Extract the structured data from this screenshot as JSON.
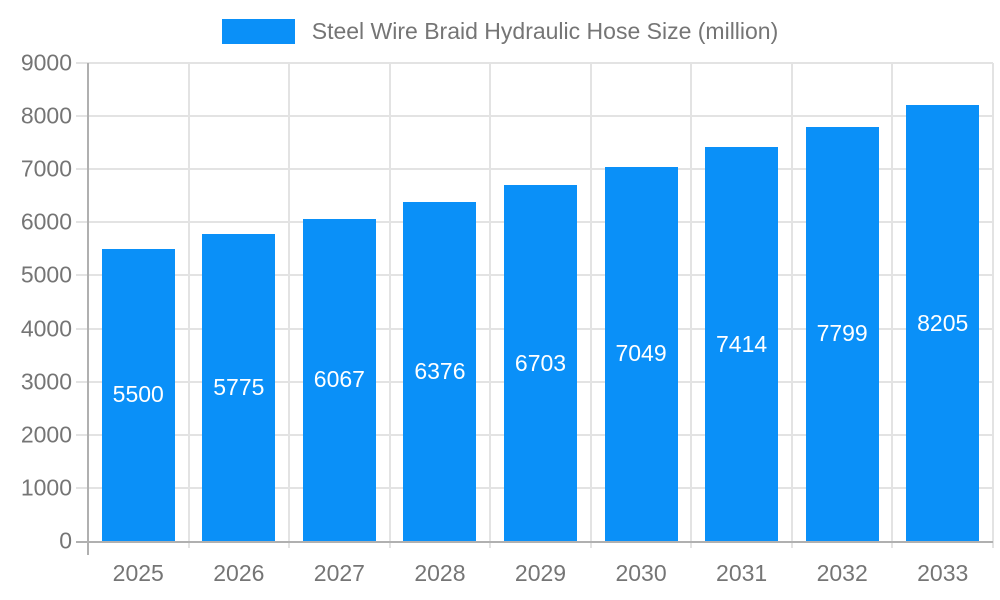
{
  "chart_data": {
    "type": "bar",
    "title": "Steel Wire Braid Hydraulic Hose Size (million)",
    "legend": {
      "position": "top",
      "label": "Steel Wire Braid Hydraulic Hose Size (million)"
    },
    "categories": [
      "2025",
      "2026",
      "2027",
      "2028",
      "2029",
      "2030",
      "2031",
      "2032",
      "2033"
    ],
    "series": [
      {
        "name": "Steel Wire Braid Hydraulic Hose Size (million)",
        "values": [
          5500,
          5775,
          6067,
          6376,
          6703,
          7049,
          7414,
          7799,
          8205
        ]
      }
    ],
    "xlabel": "",
    "ylabel": "",
    "ylim": [
      0,
      9000
    ],
    "y_ticks": [
      0,
      1000,
      2000,
      3000,
      4000,
      5000,
      6000,
      7000,
      8000,
      9000
    ],
    "grid": true,
    "bar_labels_inside": true,
    "colors": {
      "bar": "#0a90f8",
      "bar_label_text": "#ffffff",
      "axis_text": "#757575",
      "gridline": "#e3e3e3",
      "axis_line": "#b0b0b0",
      "background": "#ffffff"
    }
  }
}
